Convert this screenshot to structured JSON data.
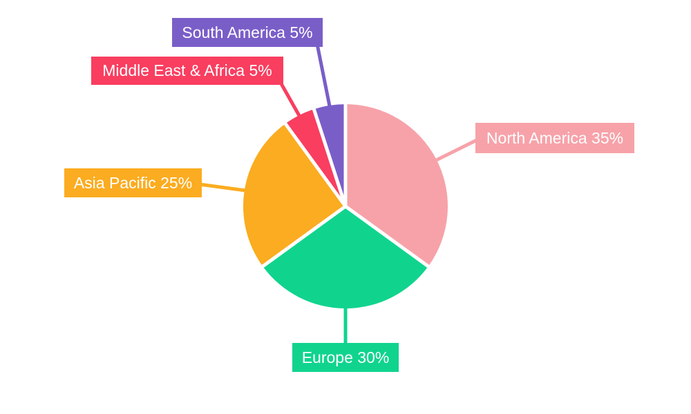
{
  "chart_data": {
    "type": "pie",
    "title": "",
    "background": "#ffffff",
    "label_text_color": "#ffffff",
    "slice_gap_color": "#ffffff",
    "start_angle_deg": 0,
    "direction": "clockwise",
    "legend_position": "callout-labels",
    "slices": [
      {
        "id": "north-america",
        "label": "North America",
        "value": 35,
        "display": "North America 35%",
        "color": "#f7a2a9"
      },
      {
        "id": "europe",
        "label": "Europe",
        "value": 30,
        "display": "Europe 30%",
        "color": "#10d48e"
      },
      {
        "id": "asia-pacific",
        "label": "Asia Pacific",
        "value": 25,
        "display": "Asia Pacific 25%",
        "color": "#fbac20"
      },
      {
        "id": "middle-east-africa",
        "label": "Middle East & Africa",
        "value": 5,
        "display": "Middle East & Africa 5%",
        "color": "#f93e60"
      },
      {
        "id": "south-america",
        "label": "South America",
        "value": 5,
        "display": "South America 5%",
        "color": "#7a5ec8"
      }
    ]
  }
}
